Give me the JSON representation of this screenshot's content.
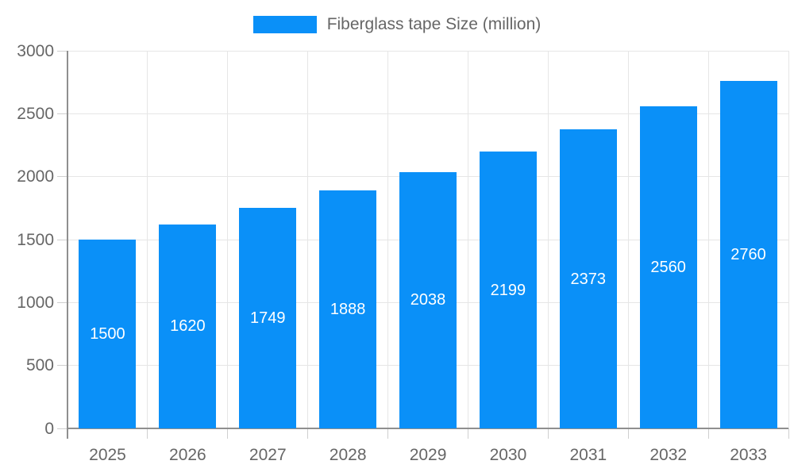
{
  "legend": {
    "series_label": "Fiberglass tape Size (million)"
  },
  "colors": {
    "bar": "#0a90f8",
    "grid": "#e6e6e6",
    "tick": "#cfcfcf",
    "axis_line": "#8f8f8f",
    "axis_text": "#666666",
    "value_label": "#ffffff",
    "background": "#ffffff"
  },
  "chart_data": {
    "type": "bar",
    "title": "",
    "legend": [
      "Fiberglass tape Size (million)"
    ],
    "legend_position": "top-center",
    "categories": [
      "2025",
      "2026",
      "2027",
      "2028",
      "2029",
      "2030",
      "2031",
      "2032",
      "2033"
    ],
    "series": [
      {
        "name": "Fiberglass tape Size (million)",
        "values": [
          1500,
          1620,
          1749,
          1888,
          2038,
          2199,
          2373,
          2560,
          2760
        ],
        "color": "#0a90f8"
      }
    ],
    "value_labels": {
      "position": "inside-center",
      "color": "#ffffff",
      "texts": [
        "1500",
        "1620",
        "1749",
        "1888",
        "2038",
        "2199",
        "2373",
        "2560",
        "2760"
      ]
    },
    "xlabel": "",
    "ylabel": "",
    "ylim": [
      0,
      3000
    ],
    "yticks": [
      0,
      500,
      1000,
      1500,
      2000,
      2500,
      3000
    ],
    "grid": true
  }
}
